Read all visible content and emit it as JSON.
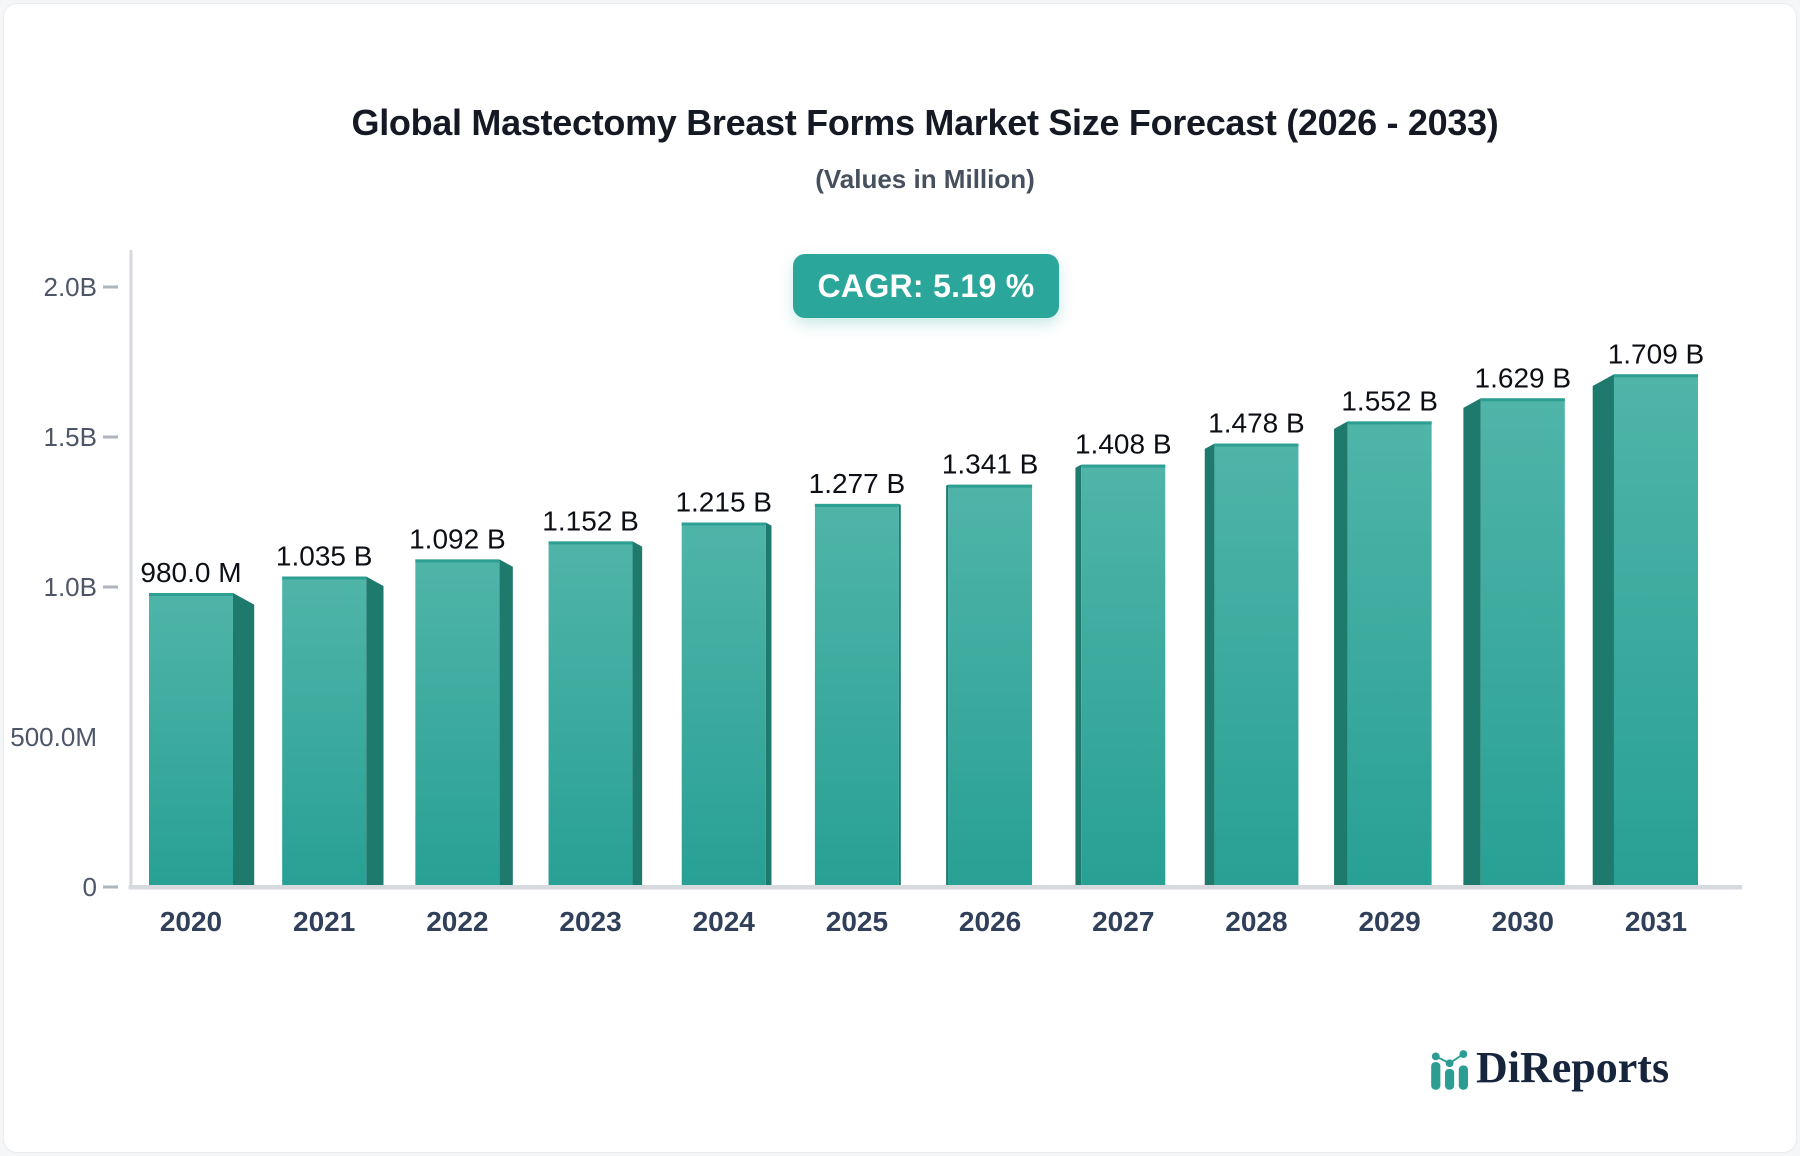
{
  "page": {
    "background": "#f4f6f8",
    "card_background": "#ffffff"
  },
  "header": {
    "title": "Global Mastectomy Breast Forms Market Size Forecast (2026 - 2033)",
    "subtitle": "(Values in Million)"
  },
  "badge": {
    "label": "CAGR: 5.19 %",
    "background": "#2aa79a",
    "text_color": "#ffffff"
  },
  "chart_data": {
    "type": "bar",
    "title": "Global Mastectomy Breast Forms Market Size Forecast (2026 - 2033)",
    "subtitle": "(Values in Million)",
    "unit": "Million",
    "cagr_percent": 5.19,
    "categories": [
      "2020",
      "2021",
      "2022",
      "2023",
      "2024",
      "2025",
      "2026",
      "2027",
      "2028",
      "2029",
      "2030",
      "2031"
    ],
    "values": [
      980,
      1035,
      1092,
      1152,
      1215,
      1277,
      1341,
      1408,
      1478,
      1552,
      1629,
      1709
    ],
    "value_labels": [
      "980.0 M",
      "1.035 B",
      "1.092 B",
      "1.152 B",
      "1.215 B",
      "1.277 B",
      "1.341 B",
      "1.408 B",
      "1.478 B",
      "1.552 B",
      "1.629 B",
      "1.709 B"
    ],
    "xlabel": "",
    "ylabel": "",
    "ylim": [
      0,
      2000
    ],
    "grid": false,
    "legend": "none",
    "yticks": [
      {
        "value": 2000,
        "label": "2.0B",
        "dash": true
      },
      {
        "value": 1500,
        "label": "1.5B",
        "dash": true
      },
      {
        "value": 1000,
        "label": "1.0B",
        "dash": true
      },
      {
        "value": 500,
        "label": "500.0M",
        "dash": false
      },
      {
        "value": 0,
        "label": "0",
        "dash": true
      }
    ],
    "colors": {
      "front_top": "#50b4a9",
      "front_bottom": "#28a094",
      "side": "#1f7a6e",
      "top_edge": "#2e9f93",
      "axis": "#d6d9de",
      "tick_dash": "#aeb5bf",
      "tick_text": "#4d5668",
      "year_text": "#31405a",
      "value_text": "#0c0f15"
    }
  },
  "logo": {
    "text": "DiReports",
    "icon": "bar-chart-trend-icon",
    "text_color": "#16243c",
    "icon_color": "#2b9d93"
  }
}
